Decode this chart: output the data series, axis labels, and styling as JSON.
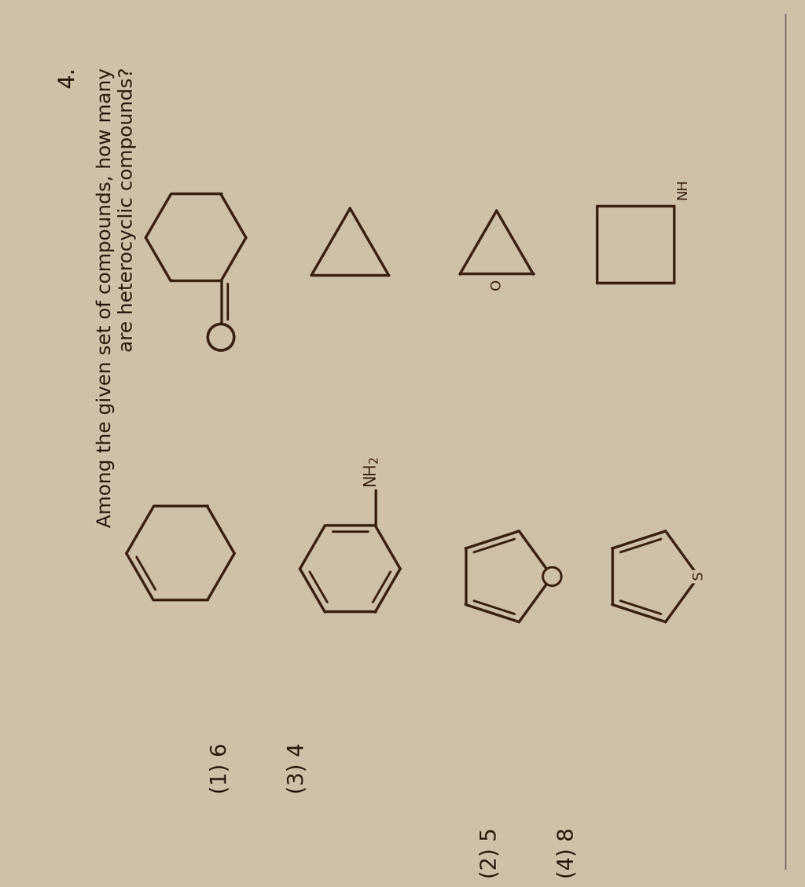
{
  "background_color": "#cfc0a8",
  "text_color": "#2a1a0a",
  "line_color": "#3a2010",
  "line_width": 2.5,
  "question_number": "4.",
  "question_text": "Among the given set of compounds, how many\nare heterocyclic compounds?",
  "options": [
    [
      "(1) 6",
      "(2) 5"
    ],
    [
      "(3) 4",
      "(4) 8"
    ]
  ],
  "font_size_question": 19,
  "font_size_options": 20,
  "fig_w": 11.29,
  "fig_h": 10.24
}
